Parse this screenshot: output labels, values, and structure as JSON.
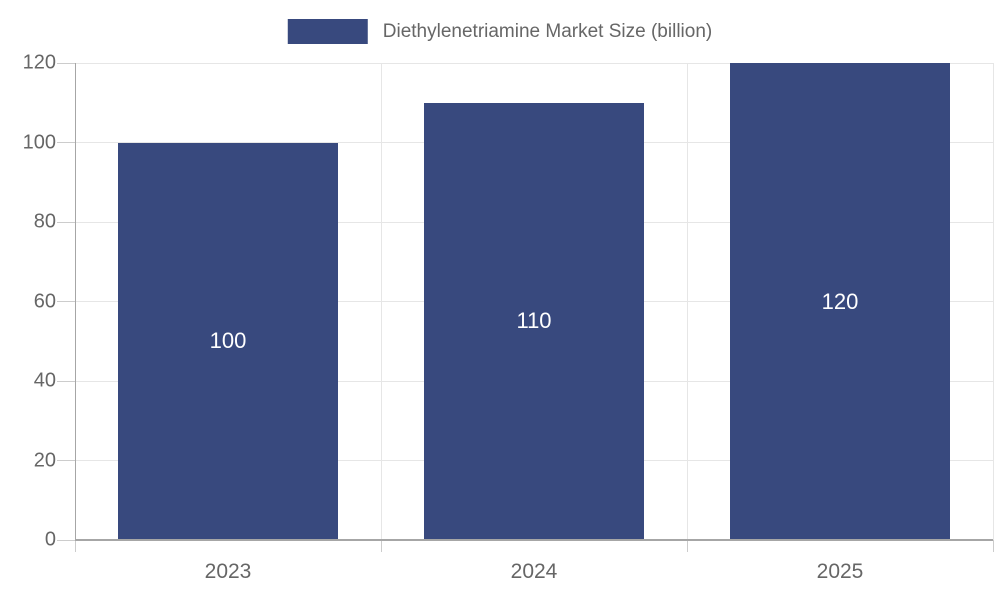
{
  "chart_data": {
    "type": "bar",
    "title": "",
    "legend": {
      "label": "Diethylenetriamine Market Size (billion)",
      "position": "top-center"
    },
    "categories": [
      "2023",
      "2024",
      "2025"
    ],
    "series": [
      {
        "name": "Diethylenetriamine Market Size (billion)",
        "values": [
          100,
          110,
          120
        ]
      }
    ],
    "data_labels": [
      "100",
      "110",
      "120"
    ],
    "ytick_labels": [
      "0",
      "20",
      "40",
      "60",
      "80",
      "100",
      "120"
    ],
    "yticks": [
      0,
      20,
      40,
      60,
      80,
      100,
      120
    ],
    "ylim": [
      0,
      120
    ],
    "xlabel": "",
    "ylabel": "",
    "grid": true,
    "colors": {
      "bar": "#38497E",
      "data_label": "#ffffff",
      "axis_text": "#666666",
      "gridline": "#e6e6e6",
      "axis_line": "#a6a6a6",
      "tick_mark": "#cccccc",
      "background": "#ffffff"
    }
  }
}
